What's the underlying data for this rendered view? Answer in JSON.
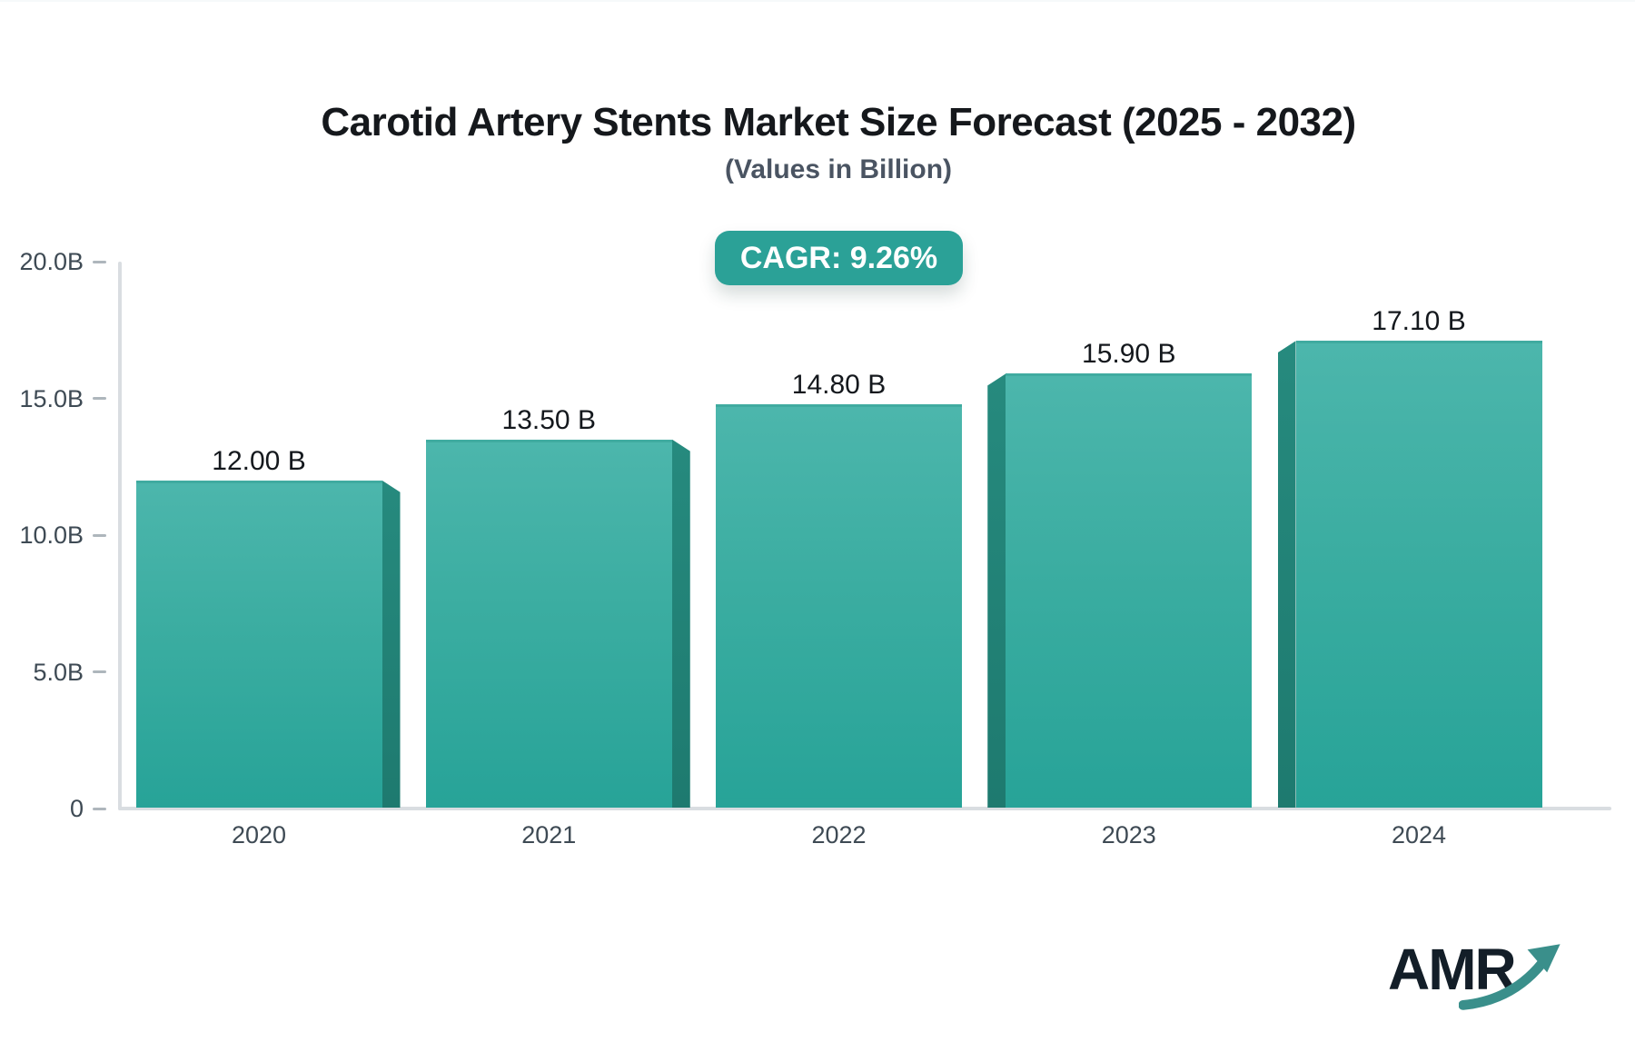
{
  "header": {
    "title": "Carotid Artery Stents Market Size Forecast (2025 - 2032)",
    "subtitle": "(Values in Billion)",
    "badge": "CAGR: 9.26%"
  },
  "chart_data": {
    "type": "bar",
    "categories": [
      "2020",
      "2021",
      "2022",
      "2023",
      "2024"
    ],
    "values": [
      12.0,
      13.5,
      14.8,
      15.9,
      17.1
    ],
    "value_labels": [
      "12.00 B",
      "13.50 B",
      "14.80 B",
      "15.90 B",
      "17.10 B"
    ],
    "title": "Carotid Artery Stents Market Size Forecast (2025 - 2032)",
    "subtitle": "(Values in Billion)",
    "annotation": "CAGR: 9.26%",
    "xlabel": "",
    "ylabel": "",
    "ylim": [
      0,
      20
    ],
    "ytick_values": [
      20,
      15,
      10,
      5,
      0
    ],
    "ytick_labels": [
      "20.0B",
      "15.0B",
      "10.0B",
      "5.0B",
      "0"
    ],
    "grid": false,
    "legend": false,
    "bar_color_top": "#4cb6ac",
    "bar_color_bottom": "#27a398",
    "bar_side_color": "#1f7d72",
    "badge_color": "#2ba197",
    "axis_color": "#d9dde1"
  },
  "logo": {
    "text": "AMR",
    "arrow_color": "#3a8f8b"
  }
}
